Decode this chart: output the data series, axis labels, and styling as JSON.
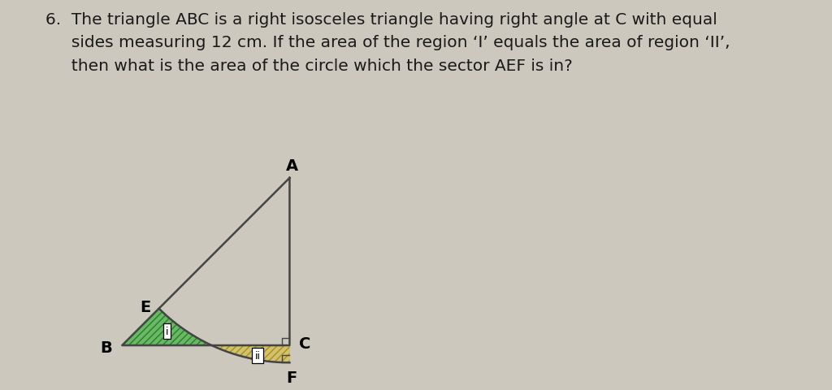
{
  "bg_color": "#ccc8be",
  "text_color": "#1a1a1a",
  "title_line1": "6.  The triangle ABC is a right isosceles triangle having right angle at C with equal",
  "title_line2": "     sides measuring 12 cm. If the area of the region ‘I’ equals the area of region ‘II’,",
  "title_line3": "     then what is the area of the circle which the sector AEF is in?",
  "title_fontsize": 14.5,
  "label_fontsize": 14,
  "green_fill": "#5cb85c",
  "green_hatch": "#2e7d2e",
  "yellow_fill": "#d4c060",
  "yellow_hatch": "#a89020",
  "triangle_lw": 1.8,
  "arc_lw": 1.8,
  "t_B": 0.22,
  "C": [
    12.0,
    0.0
  ],
  "A": [
    12.0,
    12.0
  ],
  "B": [
    0.0,
    0.0
  ]
}
